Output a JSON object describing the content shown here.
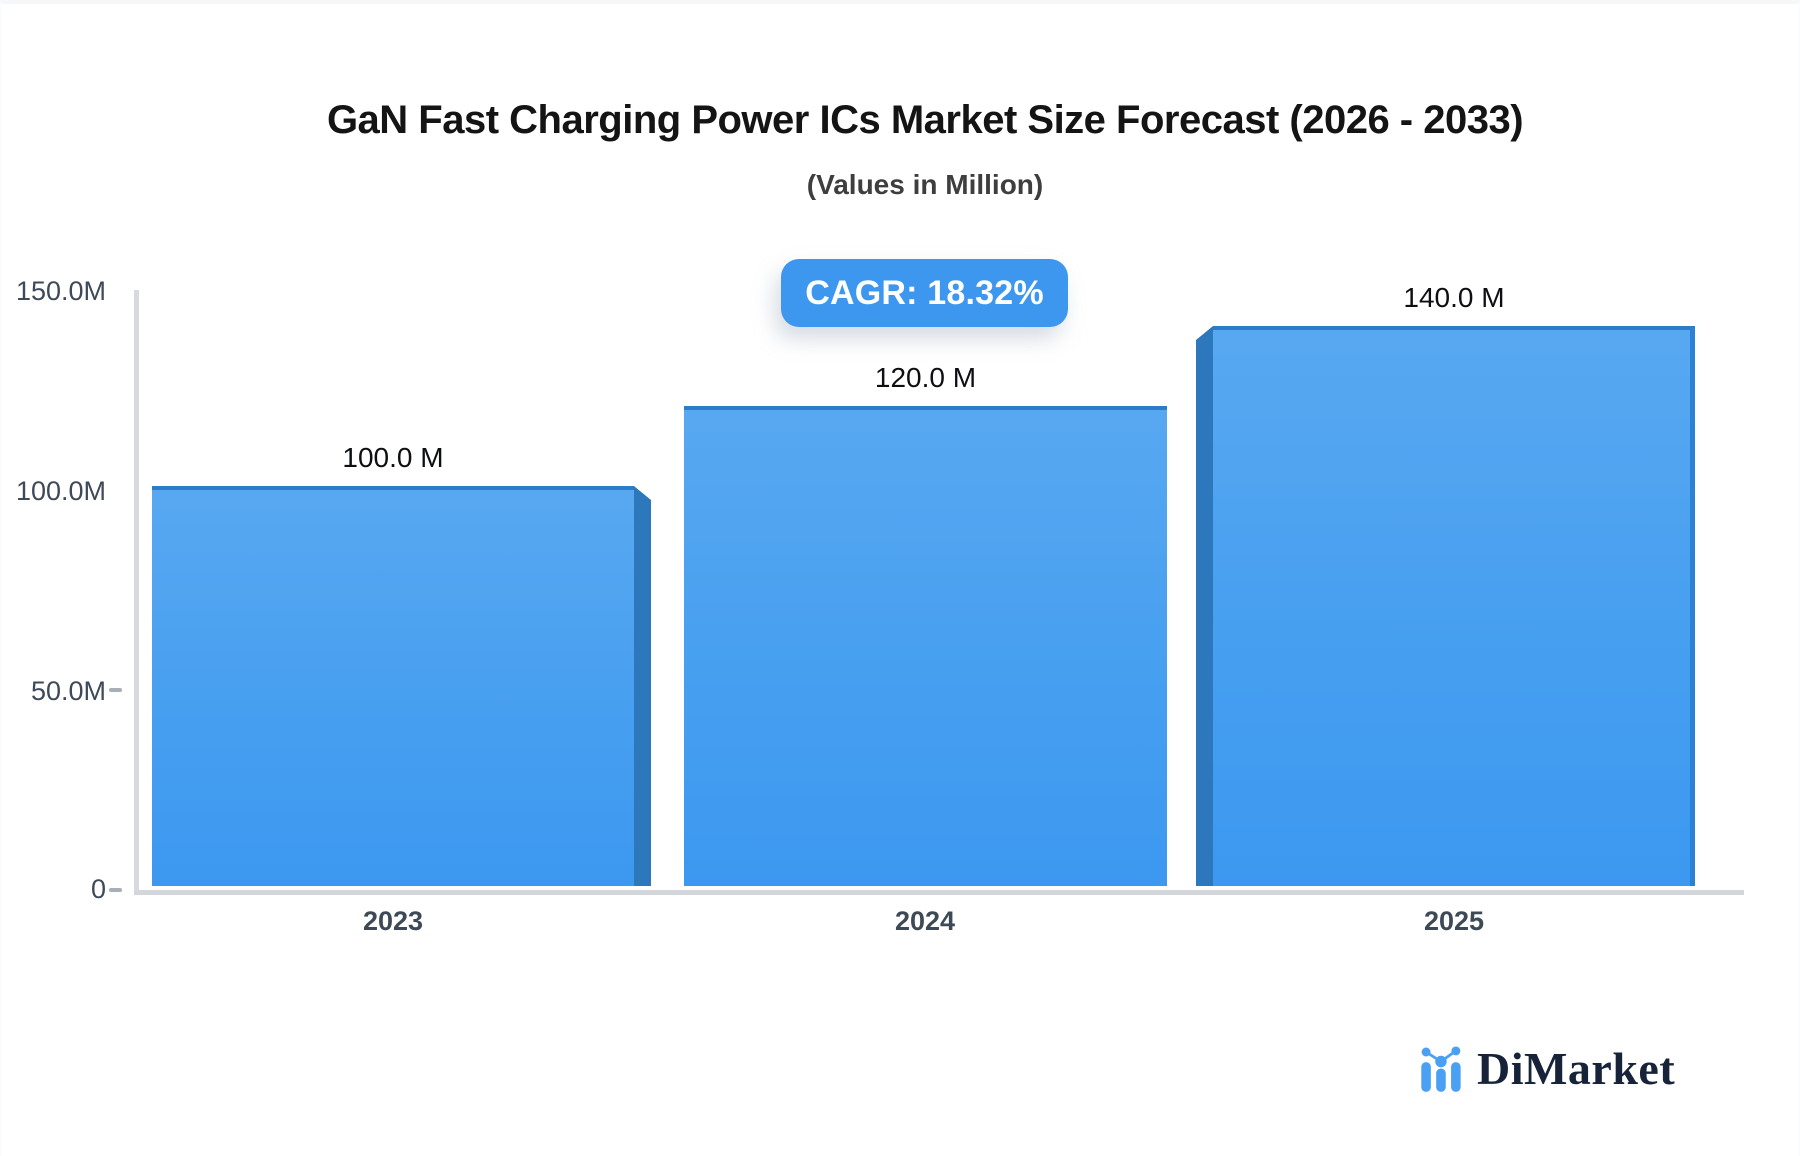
{
  "title": "GaN Fast Charging Power ICs Market Size Forecast (2026 - 2033)",
  "subtitle": "(Values in Million)",
  "badge": {
    "label": "CAGR: 18.32%"
  },
  "chart_data": {
    "type": "bar",
    "title": "GaN Fast Charging Power ICs Market Size Forecast (2026 - 2033)",
    "subtitle": "(Values in Million)",
    "unit": "Million",
    "cagr_percent": 18.32,
    "categories": [
      "2023",
      "2024",
      "2025"
    ],
    "values": [
      100,
      120,
      140
    ],
    "value_labels": [
      "100.0 M",
      "120.0 M",
      "140.0 M"
    ],
    "y_tick_labels": [
      "150.0M",
      "100.0M",
      "50.0M",
      "0"
    ],
    "ylim": [
      0,
      150
    ],
    "grid": "off",
    "legend": "none",
    "bar_color": "#3c98f0",
    "bar_color_top": "#58a8f1",
    "bar_side_color": "#2d78bd",
    "axis_color": "#d5d8dc"
  },
  "colors": {
    "badge_bg": "#3d97ef",
    "badge_text": "#ffffff",
    "title_text": "#141414",
    "axis_label_text": "#3f4a59",
    "logo_blue": "#4aa0f2",
    "logo_navy": "#162338"
  },
  "logo": {
    "text": "DiMarket"
  }
}
